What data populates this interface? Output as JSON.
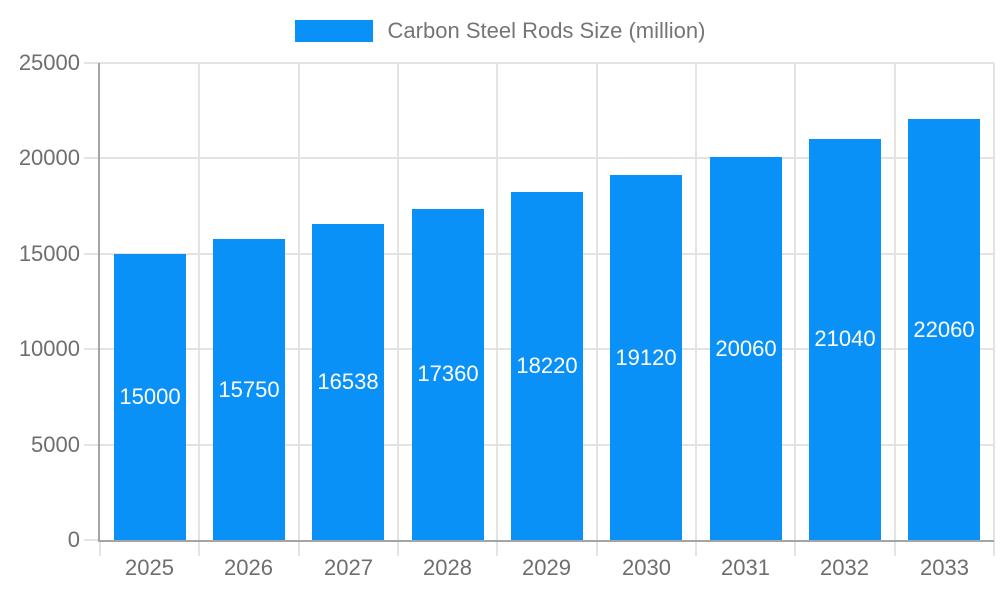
{
  "chart_data": {
    "type": "bar",
    "legend_label": "Carbon Steel Rods Size (million)",
    "categories": [
      "2025",
      "2026",
      "2027",
      "2028",
      "2029",
      "2030",
      "2031",
      "2032",
      "2033"
    ],
    "values": [
      15000,
      15750,
      16538,
      17360,
      18220,
      19120,
      20060,
      21040,
      22060
    ],
    "xlabel": "",
    "ylabel": "",
    "ylim": [
      0,
      25000
    ],
    "yticks": [
      0,
      5000,
      10000,
      15000,
      20000,
      25000
    ],
    "grid": "on",
    "legend_position": "top-center",
    "bar_labels_inside": true,
    "colors": {
      "bar": "#0991f8",
      "bar_label": "#ffffff",
      "axis_line": "#a5a5a5",
      "gridline": "#e3e3e3",
      "tick_text": "#6e6e6e",
      "legend_text": "#757575",
      "background": "#ffffff"
    }
  }
}
